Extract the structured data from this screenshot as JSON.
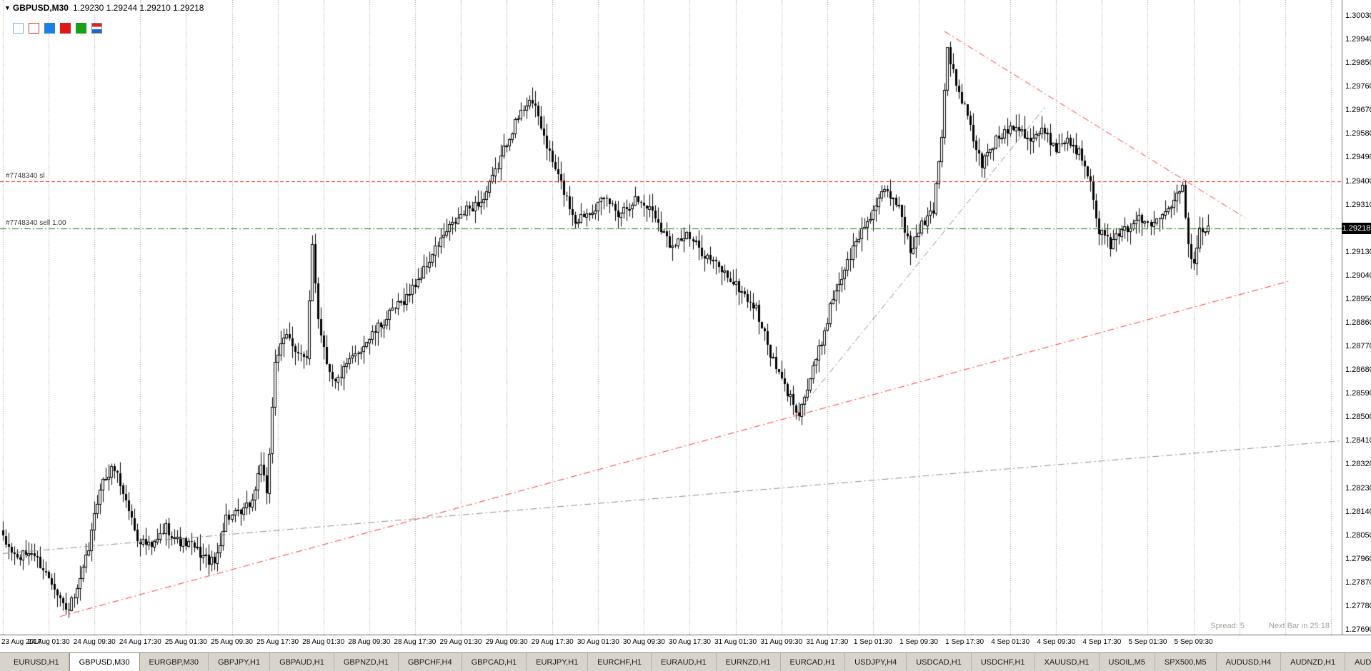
{
  "header": {
    "collapse_arrow": "▼",
    "symbol": "GBPUSD,M30",
    "ohlc_text": "1.29230 1.29244 1.29210 1.29218"
  },
  "toolbar": {
    "swatches": [
      {
        "name": "swatch-white",
        "fill": "#ffffff",
        "border": "#7ab0e0"
      },
      {
        "name": "swatch-red-outline",
        "fill": "#ffffff",
        "border": "#e03030"
      },
      {
        "name": "swatch-blue",
        "fill": "#1f7fe8",
        "border": "#1f7fe8"
      },
      {
        "name": "swatch-red",
        "fill": "#e01818",
        "border": "#e01818"
      },
      {
        "name": "swatch-green",
        "fill": "#18a018",
        "border": "#18a018"
      },
      {
        "name": "swatch-striped",
        "fill": "striped",
        "border": "#888888"
      }
    ]
  },
  "chart_data": {
    "type": "candlestick",
    "symbol": "GBPUSD",
    "timeframe": "M30",
    "ohlc_current": {
      "open": 1.2923,
      "high": 1.29244,
      "low": 1.2921,
      "close": 1.29218
    },
    "price_axis": {
      "min": 1.2769,
      "max": 1.3003,
      "step": 0.0009,
      "current_price": "1.29218",
      "labels": [
        "1.30030",
        "1.29940",
        "1.29850",
        "1.29760",
        "1.29670",
        "1.29580",
        "1.29490",
        "1.29400",
        "1.29310",
        "1.29220",
        "1.29130",
        "1.29040",
        "1.28950",
        "1.28860",
        "1.28770",
        "1.28680",
        "1.28590",
        "1.28500",
        "1.28410",
        "1.28320",
        "1.28230",
        "1.28140",
        "1.28050",
        "1.27960",
        "1.27870",
        "1.27780",
        "1.27690"
      ]
    },
    "time_labels": [
      "23 Aug 2017",
      "24 Aug 01:30",
      "24 Aug 09:30",
      "24 Aug 17:30",
      "25 Aug 01:30",
      "25 Aug 09:30",
      "25 Aug 17:30",
      "28 Aug 01:30",
      "28 Aug 09:30",
      "28 Aug 17:30",
      "29 Aug 01:30",
      "29 Aug 09:30",
      "29 Aug 17:30",
      "30 Aug 01:30",
      "30 Aug 09:30",
      "30 Aug 17:30",
      "31 Aug 01:30",
      "31 Aug 09:30",
      "31 Aug 17:30",
      "1 Sep 01:30",
      "1 Sep 09:30",
      "1 Sep 17:30",
      "4 Sep 01:30",
      "4 Sep 09:30",
      "4 Sep 17:30",
      "5 Sep 01:30",
      "5 Sep 09:30"
    ],
    "bars_total": 422,
    "bars_per_label": 16,
    "grid": {
      "vertical_lines": 30,
      "color": "#949494"
    },
    "colors": {
      "bull": "#ffffff",
      "bear": "#000000",
      "wick": "#000000"
    },
    "orders": [
      {
        "label": "#7748340 sl",
        "price": 1.294,
        "color": "#ee1111",
        "dash": [
          5,
          3
        ]
      },
      {
        "label": "#7748340 sell 1.00",
        "price": 1.29218,
        "color": "#0f7d0f",
        "dash": [
          9,
          3,
          2,
          3
        ]
      }
    ],
    "trend_lines": [
      {
        "name": "ascending-support-red",
        "color": "#ff3030",
        "from": [
          20,
          1.2774
        ],
        "to": [
          450,
          1.2902
        ]
      },
      {
        "name": "descending-resistance-red",
        "color": "#ff3030",
        "from": [
          329,
          1.2997
        ],
        "to": [
          434,
          1.2926
        ]
      },
      {
        "name": "ascending-support-gray-long",
        "color": "#8a8a8a",
        "from": [
          0,
          1.2798
        ],
        "to": [
          468,
          1.2841
        ]
      },
      {
        "name": "ascending-support-gray-steep",
        "color": "#8a8a8a",
        "from": [
          277,
          1.2851
        ],
        "to": [
          364,
          1.2968
        ]
      }
    ],
    "price_path": [
      [
        0,
        1.2803
      ],
      [
        5,
        1.2796
      ],
      [
        10,
        1.2799
      ],
      [
        14,
        1.2792
      ],
      [
        18,
        1.2786
      ],
      [
        22,
        1.2776
      ],
      [
        26,
        1.2783
      ],
      [
        30,
        1.28
      ],
      [
        34,
        1.2824
      ],
      [
        39,
        1.2831
      ],
      [
        43,
        1.2818
      ],
      [
        47,
        1.2804
      ],
      [
        52,
        1.28
      ],
      [
        57,
        1.2808
      ],
      [
        61,
        1.2803
      ],
      [
        66,
        1.2801
      ],
      [
        70,
        1.2797
      ],
      [
        74,
        1.2794
      ],
      [
        78,
        1.2812
      ],
      [
        83,
        1.2813
      ],
      [
        87,
        1.2818
      ],
      [
        90,
        1.2833
      ],
      [
        92,
        1.2819
      ],
      [
        95,
        1.2872
      ],
      [
        99,
        1.2881
      ],
      [
        103,
        1.2875
      ],
      [
        106,
        1.2871
      ],
      [
        108,
        1.2916
      ],
      [
        110,
        1.2888
      ],
      [
        113,
        1.2871
      ],
      [
        116,
        1.2863
      ],
      [
        121,
        1.2871
      ],
      [
        127,
        1.2879
      ],
      [
        135,
        1.2889
      ],
      [
        141,
        1.2896
      ],
      [
        147,
        1.2906
      ],
      [
        152,
        1.2916
      ],
      [
        156,
        1.2922
      ],
      [
        162,
        1.2929
      ],
      [
        168,
        1.2933
      ],
      [
        173,
        1.2946
      ],
      [
        177,
        1.2958
      ],
      [
        181,
        1.2966
      ],
      [
        184,
        1.2972
      ],
      [
        187,
        1.2964
      ],
      [
        191,
        1.295
      ],
      [
        196,
        1.2936
      ],
      [
        200,
        1.2925
      ],
      [
        205,
        1.2929
      ],
      [
        211,
        1.2933
      ],
      [
        215,
        1.2928
      ],
      [
        221,
        1.2933
      ],
      [
        227,
        1.2929
      ],
      [
        233,
        1.2916
      ],
      [
        239,
        1.2919
      ],
      [
        245,
        1.2912
      ],
      [
        251,
        1.2906
      ],
      [
        257,
        1.2899
      ],
      [
        263,
        1.2891
      ],
      [
        269,
        1.2871
      ],
      [
        274,
        1.2859
      ],
      [
        278,
        1.2852
      ],
      [
        281,
        1.2861
      ],
      [
        286,
        1.2879
      ],
      [
        290,
        1.2896
      ],
      [
        295,
        1.2909
      ],
      [
        299,
        1.2919
      ],
      [
        304,
        1.2929
      ],
      [
        308,
        1.2936
      ],
      [
        313,
        1.2931
      ],
      [
        317,
        1.2913
      ],
      [
        321,
        1.2923
      ],
      [
        325,
        1.2929
      ],
      [
        328,
        1.2958
      ],
      [
        330,
        1.2991
      ],
      [
        333,
        1.2976
      ],
      [
        336,
        1.2968
      ],
      [
        339,
        1.2956
      ],
      [
        342,
        1.2946
      ],
      [
        345,
        1.2953
      ],
      [
        350,
        1.2959
      ],
      [
        354,
        1.2962
      ],
      [
        359,
        1.2956
      ],
      [
        363,
        1.2959
      ],
      [
        368,
        1.2953
      ],
      [
        372,
        1.2956
      ],
      [
        377,
        1.2949
      ],
      [
        380,
        1.2941
      ],
      [
        383,
        1.2921
      ],
      [
        387,
        1.2916
      ],
      [
        392,
        1.2921
      ],
      [
        396,
        1.2926
      ],
      [
        401,
        1.2923
      ],
      [
        405,
        1.2929
      ],
      [
        409,
        1.2933
      ],
      [
        412,
        1.294
      ],
      [
        414,
        1.2914
      ],
      [
        416,
        1.291
      ],
      [
        418,
        1.2922
      ],
      [
        421,
        1.2922
      ]
    ]
  },
  "status": {
    "spread": "Spread: 5",
    "next_bar": "Next Bar in 25:18"
  },
  "tabs": [
    {
      "label": "EURUSD,H1",
      "active": false
    },
    {
      "label": "GBPUSD,M30",
      "active": true
    },
    {
      "label": "EURGBP,M30",
      "active": false
    },
    {
      "label": "GBPJPY,H1",
      "active": false
    },
    {
      "label": "GBPAUD,H1",
      "active": false
    },
    {
      "label": "GBPNZD,H1",
      "active": false
    },
    {
      "label": "GBPCHF,H4",
      "active": false
    },
    {
      "label": "GBPCAD,H1",
      "active": false
    },
    {
      "label": "EURJPY,H1",
      "active": false
    },
    {
      "label": "EURCHF,H1",
      "active": false
    },
    {
      "label": "EURAUD,H1",
      "active": false
    },
    {
      "label": "EURNZD,H1",
      "active": false
    },
    {
      "label": "EURCAD,H1",
      "active": false
    },
    {
      "label": "USDJPY,H4",
      "active": false
    },
    {
      "label": "USDCAD,H1",
      "active": false
    },
    {
      "label": "USDCHF,H1",
      "active": false
    },
    {
      "label": "XAUUSD,H1",
      "active": false
    },
    {
      "label": "USOIL,M5",
      "active": false
    },
    {
      "label": "SPX500,M5",
      "active": false
    },
    {
      "label": "AUDUSD,H4",
      "active": false
    },
    {
      "label": "AUDNZD,H1",
      "active": false
    },
    {
      "label": "AUDCAD,Daily",
      "active": false
    }
  ]
}
